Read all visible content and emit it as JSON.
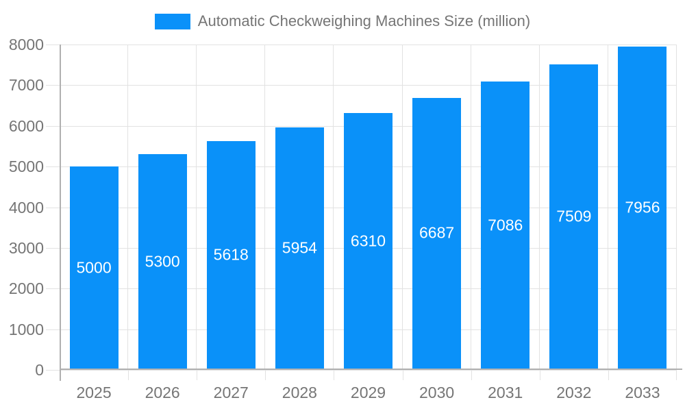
{
  "chart_data": {
    "type": "bar",
    "title": "Automatic Checkweighing Machines Size (million)",
    "categories": [
      "2025",
      "2026",
      "2027",
      "2028",
      "2029",
      "2030",
      "2031",
      "2032",
      "2033"
    ],
    "values": [
      5000,
      5300,
      5618,
      5954,
      6310,
      6687,
      7086,
      7509,
      7956
    ],
    "xlabel": "",
    "ylabel": "",
    "ylim": [
      0,
      8000
    ],
    "yticks": [
      0,
      1000,
      2000,
      3000,
      4000,
      5000,
      6000,
      7000,
      8000
    ],
    "grid": true,
    "legend_position": "top-center",
    "bar_label_position": "center",
    "colors": {
      "bar": "#0a91f9",
      "bar_label": "#ffffff",
      "axis_text": "#757575",
      "grid_line": "#e2e2e2",
      "axis_line": "#b0b0b0",
      "background": "#ffffff"
    }
  }
}
